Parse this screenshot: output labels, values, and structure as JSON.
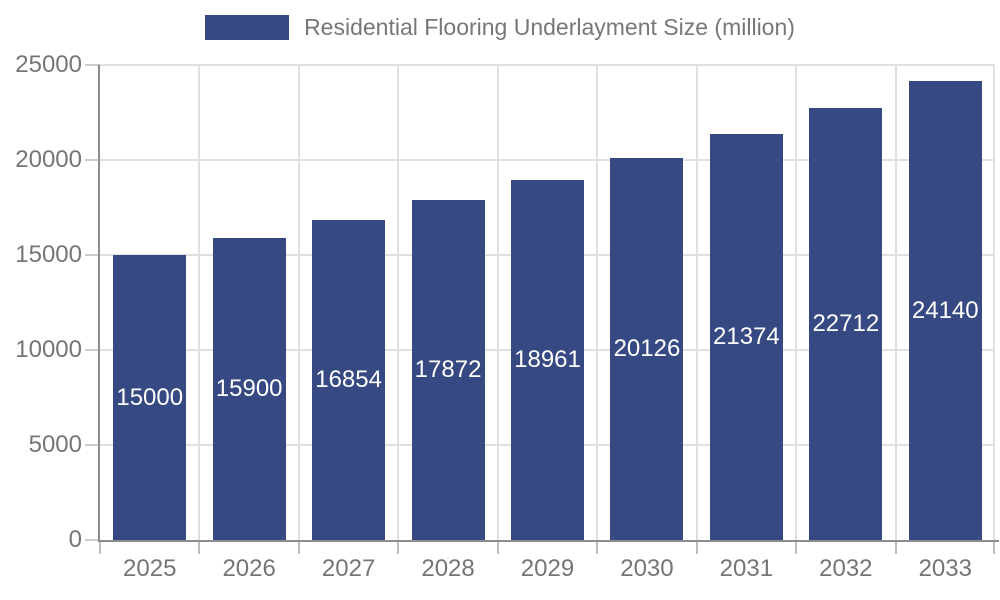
{
  "chart_data": {
    "type": "bar",
    "title": "Residential Flooring Underlayment Size (million)",
    "legend": {
      "position": "top",
      "entries": [
        "Residential Flooring Underlayment Size (million)"
      ]
    },
    "categories": [
      "2025",
      "2026",
      "2027",
      "2028",
      "2029",
      "2030",
      "2031",
      "2032",
      "2033"
    ],
    "values": [
      15000,
      15900,
      16854,
      17872,
      18961,
      20126,
      21374,
      22712,
      24140
    ],
    "value_labels": [
      "15000",
      "15900",
      "16854",
      "17872",
      "18961",
      "20126",
      "21374",
      "22712",
      "24140"
    ],
    "xlabel": "",
    "ylabel": "",
    "ylim": [
      0,
      25000
    ],
    "yticks": [
      0,
      5000,
      10000,
      15000,
      20000,
      25000
    ],
    "ytick_labels": [
      "0",
      "5000",
      "10000",
      "15000",
      "20000",
      "25000"
    ],
    "grid": true,
    "colors": {
      "bar": "#364983",
      "value_label": "#ffffff",
      "axis_text": "#757575",
      "legend_text": "#777777",
      "gridline": "#e0e0e0",
      "axis_line": "#8c8c8c"
    }
  }
}
